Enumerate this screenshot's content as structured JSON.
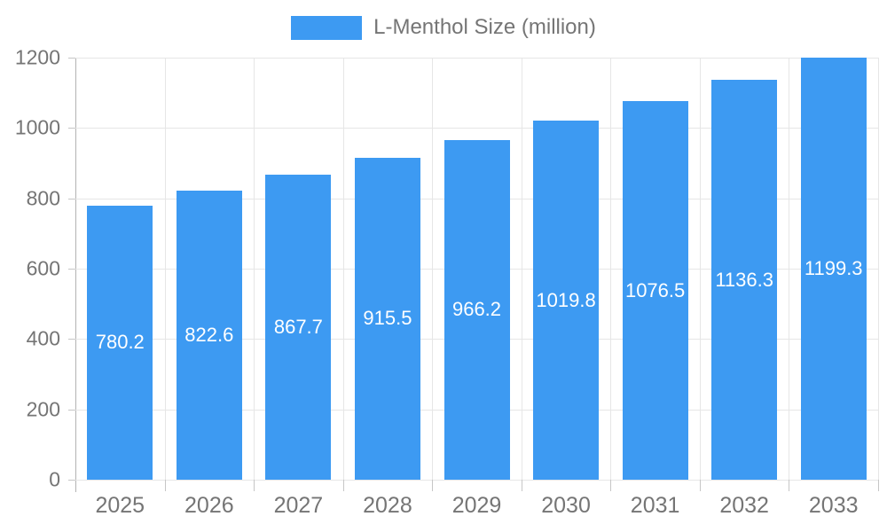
{
  "legend": {
    "label": "L-Menthol Size (million)"
  },
  "colors": {
    "bar": "#3d9af2",
    "grid": "#e6e6e6",
    "axis_line": "#b3b3b3",
    "tick": "#c6c6c6",
    "axis_text": "#757575",
    "bar_label_text": "#ffffff",
    "background": "#ffffff"
  },
  "chart_data": {
    "type": "bar",
    "title": "",
    "xlabel": "",
    "ylabel": "",
    "categories": [
      "2025",
      "2026",
      "2027",
      "2028",
      "2029",
      "2030",
      "2031",
      "2032",
      "2033"
    ],
    "series": [
      {
        "name": "L-Menthol Size (million)",
        "values": [
          780.2,
          822.6,
          867.7,
          915.5,
          966.2,
          1019.8,
          1076.5,
          1136.3,
          1199.3
        ]
      }
    ],
    "bar_labels": [
      "780.2",
      "822.6",
      "867.7",
      "915.5",
      "966.2",
      "1019.8",
      "1076.5",
      "1136.3",
      "1199.3"
    ],
    "ylim": [
      0,
      1200
    ],
    "yticks": [
      0,
      200,
      400,
      600,
      800,
      1000,
      1200
    ],
    "grid": true,
    "legend_position": "top"
  }
}
